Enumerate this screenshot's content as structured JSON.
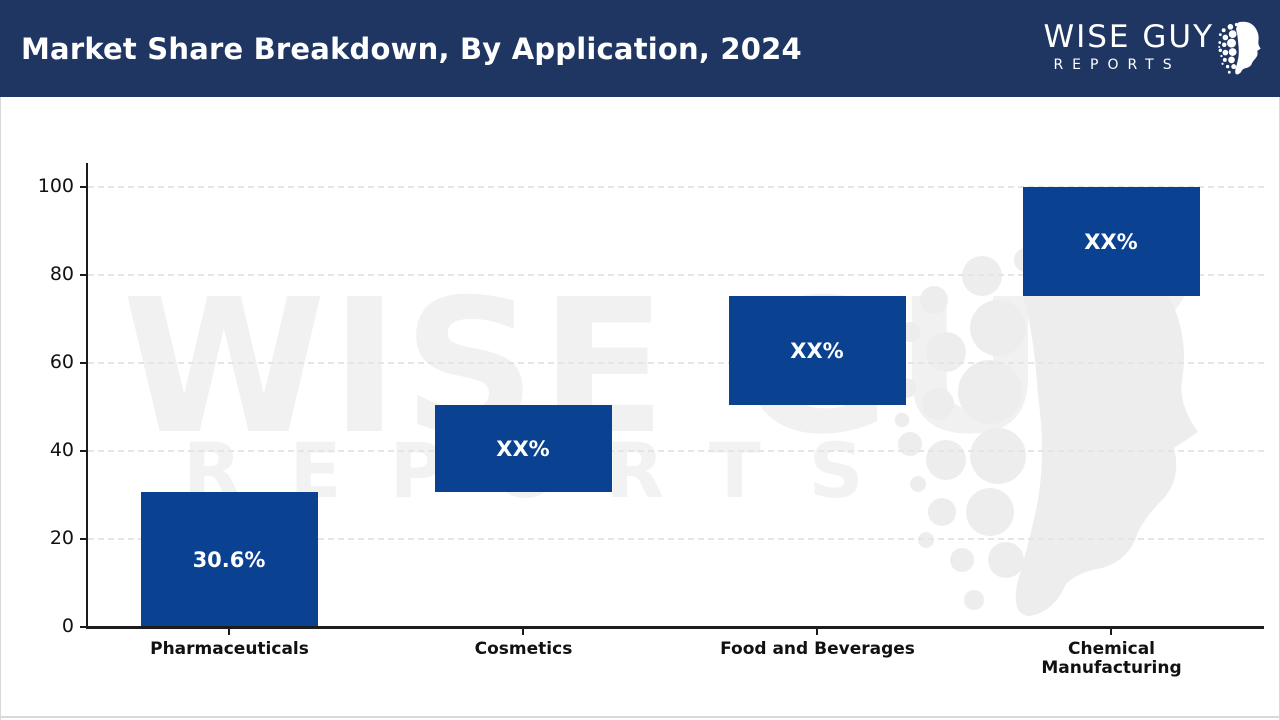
{
  "header": {
    "title": "Market Share Breakdown, By Application, 2024",
    "bg_color": "#1f3662",
    "logo": {
      "line1": "WISE GUY",
      "line2": "REPORTS"
    }
  },
  "watermark": {
    "line1": "WISE GUY",
    "line2": "REPORTS"
  },
  "chart_data": {
    "type": "bar",
    "subtype": "waterfall-stacked",
    "title": "Market Share Breakdown, By Application, 2024",
    "xlabel": "",
    "ylabel": "",
    "categories": [
      "Pharmaceuticals",
      "Cosmetics",
      "Food and Beverages",
      "Chemical Manufacturing"
    ],
    "segments": [
      {
        "category": "Pharmaceuticals",
        "start": 0,
        "end": 30.6,
        "label": "30.6%"
      },
      {
        "category": "Cosmetics",
        "start": 30.6,
        "end": 50.4,
        "label": "XX%"
      },
      {
        "category": "Food and Beverages",
        "start": 50.4,
        "end": 75.2,
        "label": "XX%"
      },
      {
        "category": "Chemical Manufacturing",
        "start": 75.2,
        "end": 100,
        "label": "XX%"
      }
    ],
    "yticks": [
      0,
      20,
      40,
      60,
      80,
      100
    ],
    "ylim": [
      0,
      105.5
    ],
    "bar_color": "#0a4191",
    "grid": true,
    "grid_style": "dashed horizontal",
    "legend": false
  }
}
